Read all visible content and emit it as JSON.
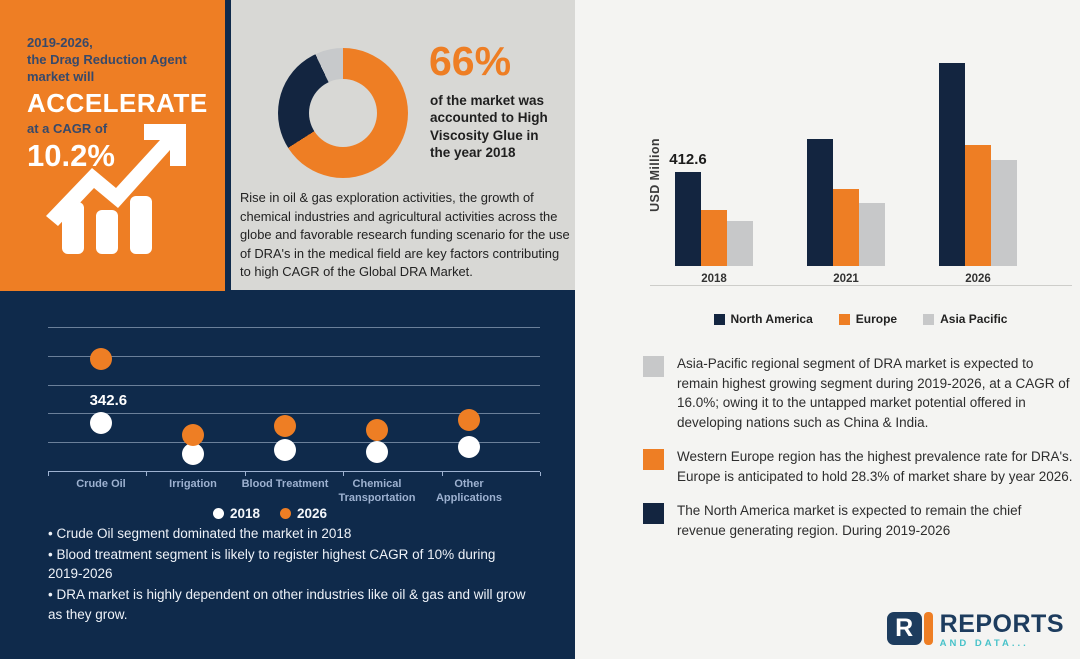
{
  "left": {
    "promo": {
      "line1": "2019-2026,",
      "line2": "the Drag Reduction Agent",
      "line3": "market will",
      "accelerate": "ACCELERATE",
      "cagr_line": "at a CAGR of",
      "cagr_value": "10.2%"
    },
    "bullets": [
      "Crude Oil segment dominated the market in 2018",
      "Blood treatment segment is likely to register highest CAGR of 10% during 2019-2026",
      "DRA market is highly dependent on other industries like oil & gas and will grow as they grow."
    ]
  },
  "top_panel": {
    "stat_value": "66%",
    "stat_text": "of the market was accounted to High Viscosity Glue in the year 2018",
    "paragraph": "Rise in oil & gas exploration activities, the growth of chemical industries and agricultural activities across the globe and favorable research funding scenario for the use of DRA's in the medical field are key factors contributing to high CAGR of the Global DRA Market."
  },
  "right": {
    "notes": [
      {
        "color": "#c7c8c9",
        "text": "Asia-Pacific regional segment of DRA market is expected to remain highest growing segment during 2019-2026, at a CAGR of 16.0%; owing it to the untapped market potential offered in developing nations such as China & India."
      },
      {
        "color": "#ee7e24",
        "text": "Western Europe region has the highest prevalence rate for DRA's. Europe is anticipated to hold 28.3% of market share by year 2026."
      },
      {
        "color": "#132540",
        "text": "The North America market is expected to remain the chief revenue generating region. During 2019-2026"
      }
    ],
    "logo": {
      "icon_letter": "R",
      "reports": "REPORTS",
      "and_data": "AND DATA..."
    }
  },
  "chart_data": [
    {
      "name": "glue_share_donut",
      "type": "pie",
      "title": "Share of High Viscosity Glue in 2018",
      "slices": [
        {
          "label": "High Viscosity Glue",
          "value": 66,
          "color": "#ee7e24"
        },
        {
          "label": "unlabeled",
          "value": 27,
          "color": "#132540"
        },
        {
          "label": "unlabeled",
          "value": 7,
          "color": "#c7c9cb"
        }
      ],
      "annotation": "66% of the market was accounted to High Viscosity Glue in the year 2018"
    },
    {
      "name": "application_dot_plot",
      "type": "scatter",
      "categories": [
        "Crude Oil",
        "Irrigation",
        "Blood Treatment",
        "Chemical Transportation",
        "Other Applications"
      ],
      "series": [
        {
          "name": "2018",
          "color": "#ffffff",
          "values": [
            342.6,
            125,
            155,
            140,
            175
          ]
        },
        {
          "name": "2026",
          "color": "#ee7e24",
          "values": [
            785,
            260,
            320,
            290,
            360
          ]
        }
      ],
      "ylim": [
        0,
        1000
      ],
      "gridline_step": 200,
      "grid": true,
      "legend_position": "bottom",
      "annotations": [
        {
          "series": "2018",
          "category": "Crude Oil",
          "text": "342.6"
        }
      ]
    },
    {
      "name": "regional_bar_chart",
      "type": "bar",
      "categories": [
        "2018",
        "2021",
        "2026"
      ],
      "series": [
        {
          "name": "North America",
          "color": "#132540",
          "values": [
            412.6,
            560,
            895
          ]
        },
        {
          "name": "Europe",
          "color": "#ee7e24",
          "values": [
            247,
            337,
            533
          ]
        },
        {
          "name": "Asia Pacific",
          "color": "#c7c8c9",
          "values": [
            200,
            278,
            468
          ]
        }
      ],
      "xlabel": "",
      "ylabel": "USD Million",
      "ylim": [
        0,
        950
      ],
      "grid": false,
      "legend_position": "bottom",
      "annotations": [
        {
          "series": "North America",
          "category": "2018",
          "text": "412.6"
        }
      ]
    }
  ]
}
